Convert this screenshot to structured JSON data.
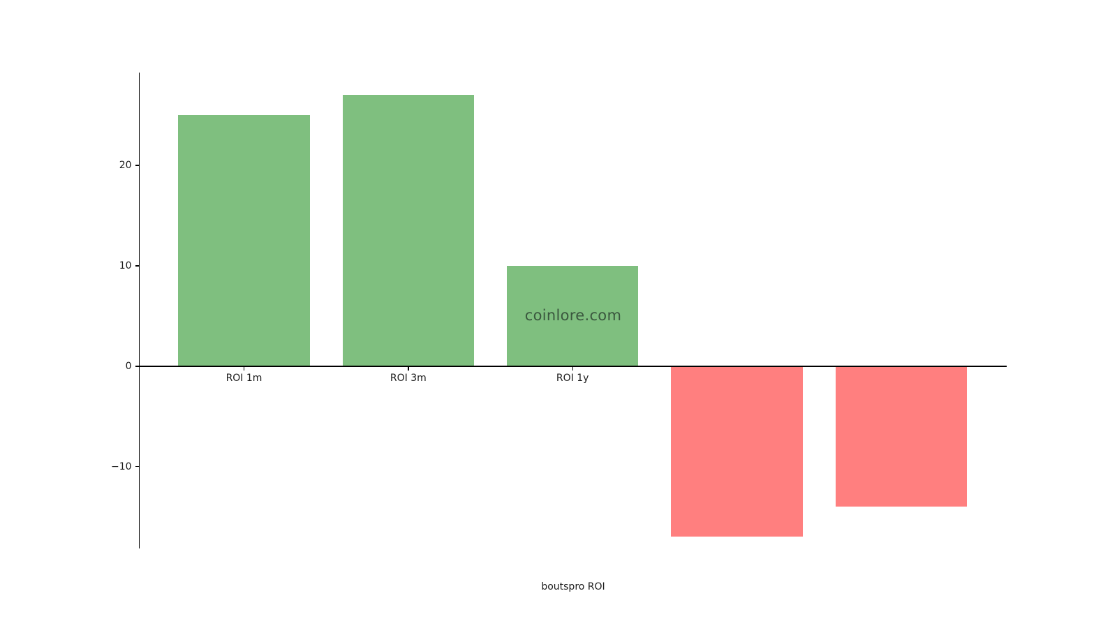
{
  "figure": {
    "watermark": "coinlore.com",
    "xlabel": "boutspro ROI"
  },
  "chart_data": {
    "type": "bar",
    "categories": [
      "ROI 1m",
      "ROI 3m",
      "ROI 1y",
      "",
      ""
    ],
    "values": [
      25,
      27,
      10,
      -17,
      -14
    ],
    "title": "",
    "xlabel": "boutspro ROI",
    "ylabel": "",
    "ylim": [
      -18.15,
      29.25
    ],
    "yticks": [
      20,
      10,
      0,
      -10
    ],
    "ytick_labels": [
      "20",
      "10",
      "0",
      "−10"
    ],
    "grid": false,
    "legend": false,
    "bar_colors": {
      "positive": "#7fbf7f",
      "negative": "#ff7f7f"
    },
    "axis_color": "#000000",
    "tick_label_color": "#1a1a1a",
    "watermark": "coinlore.com",
    "watermark_color": "#3a573e"
  }
}
